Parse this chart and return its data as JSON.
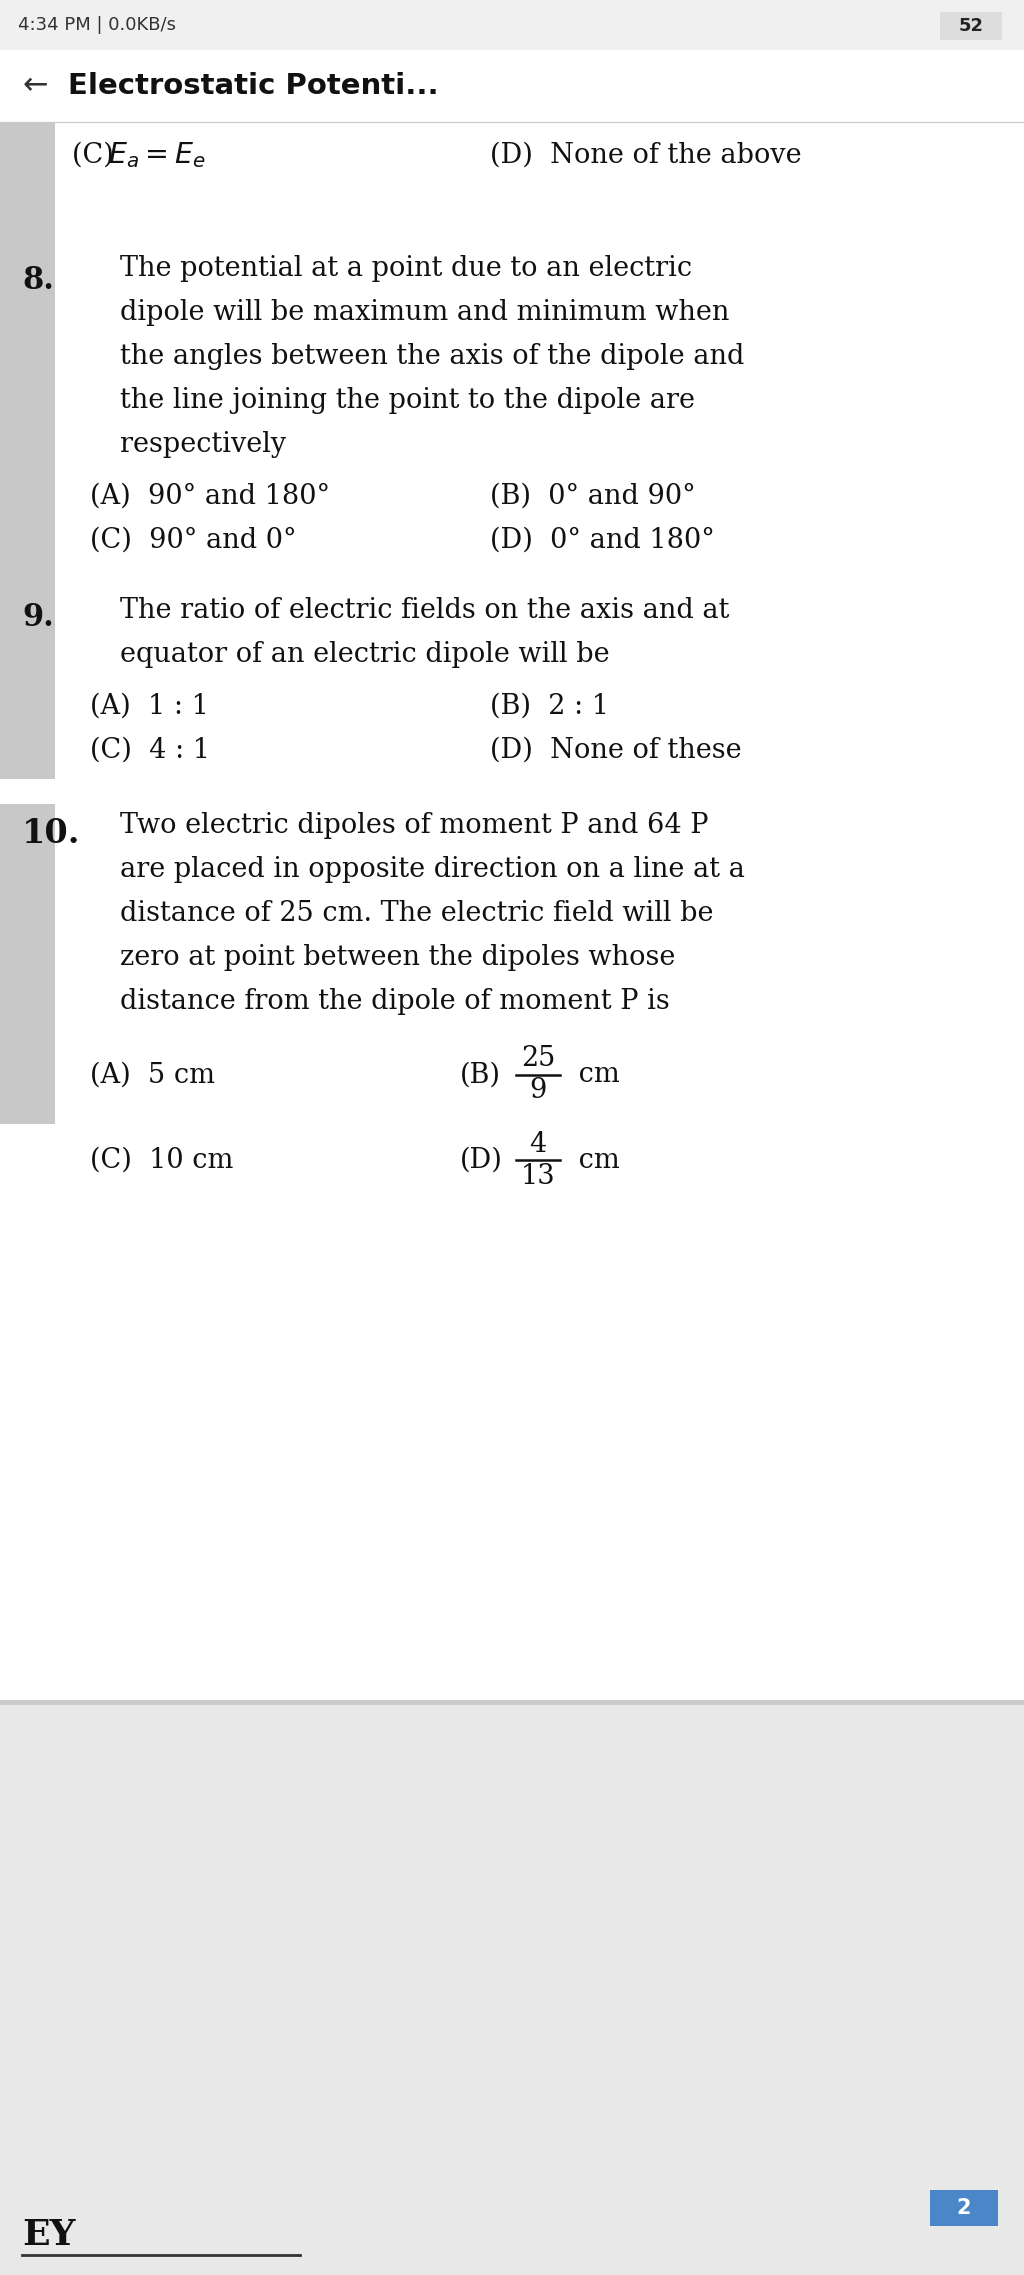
{
  "bg_color": "#f0f0f0",
  "white_bg": "#ffffff",
  "status_bar": "4:34 PM | 0.0KB/s",
  "battery": "52",
  "title": "Electrostatic Potenti...",
  "q8_num": "8.",
  "q8_text_lines": [
    "The potential at a point due to an electric",
    "dipole will be maximum and minimum when",
    "the angles between the axis of the dipole and",
    "the line joining the point to the dipole are",
    "respectively"
  ],
  "q8_optA": "(A)  90° and 180°",
  "q8_optB": "(B)  0° and 90°",
  "q8_optC": "(C)  90° and 0°",
  "q8_optD": "(D)  0° and 180°",
  "q9_num": "9.",
  "q9_text_lines": [
    "The ratio of electric fields on the axis and at",
    "equator of an electric dipole will be"
  ],
  "q9_optA": "(A)  1 : 1",
  "q9_optB": "(B)  2 : 1",
  "q9_optC": "(C)  4 : 1",
  "q9_optD": "(D)  None of these",
  "q10_num": "10.",
  "q10_text_lines": [
    "Two electric dipoles of moment P and 64 P",
    "are placed in opposite direction on a line at a",
    "distance of 25 cm. The electric field will be",
    "zero at point between the dipoles whose",
    "distance from the dipole of moment P is"
  ],
  "q10_optA": "(A)  5 cm",
  "q10_optB_num": "25",
  "q10_optB_den": "9",
  "q10_optB_prefix": "(B)",
  "q10_optB_suffix": "cm",
  "q10_optC": "(C)  10 cm",
  "q10_optD_num": "4",
  "q10_optD_den": "13",
  "q10_optD_prefix": "(D)",
  "q10_optD_suffix": "cm",
  "page_num": "2",
  "footer_text": "EY",
  "body_fs": 19.5,
  "qnum_fs": 22,
  "status_fs": 13,
  "title_fs": 21,
  "footer_fs": 26
}
